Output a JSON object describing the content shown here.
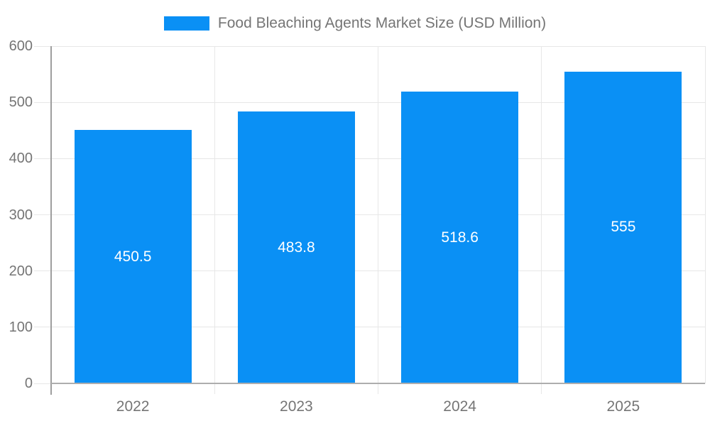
{
  "chart_data": {
    "type": "bar",
    "title": "Food Bleaching Agents Market Size (USD Million)",
    "categories": [
      "2022",
      "2023",
      "2024",
      "2025"
    ],
    "values": [
      450.5,
      483.8,
      518.6,
      555
    ],
    "value_labels": [
      "450.5",
      "483.8",
      "518.6",
      "555"
    ],
    "xlabel": "",
    "ylabel": "",
    "ylim": [
      0,
      600
    ],
    "yticks": [
      0,
      100,
      200,
      300,
      400,
      500,
      600
    ],
    "ytick_labels": [
      "0",
      "100",
      "200",
      "300",
      "400",
      "500",
      "600"
    ],
    "grid": true,
    "legend_position": "top",
    "value_labels_position": "center-inside"
  },
  "colors": {
    "bar": "#0A90F5",
    "title_text": "#757575",
    "axis_text": "#757575",
    "value_label_text": "#FFFFFF",
    "grid_line": "#E7E7E7",
    "axis_line": "#9E9E9E",
    "background": "#FFFFFF"
  }
}
